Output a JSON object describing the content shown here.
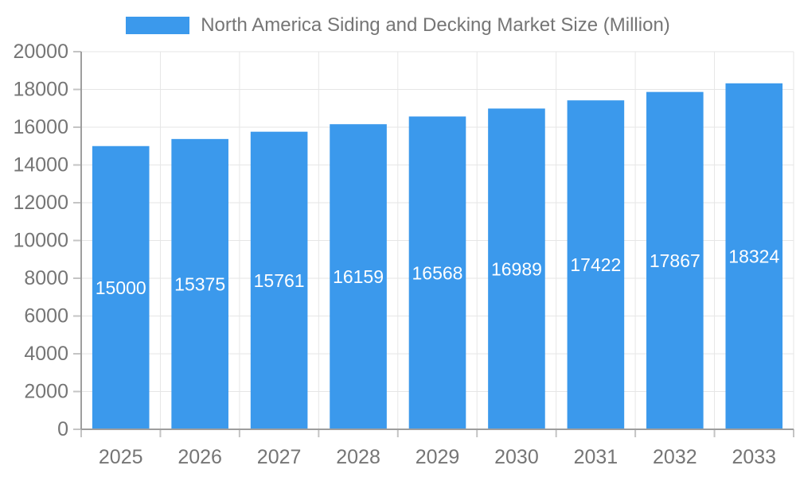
{
  "legend": {
    "label": "North America Siding and Decking Market Size (Million)",
    "swatch_color": "#3B99EC"
  },
  "chart_data": {
    "type": "bar",
    "title": "North America Siding and Decking Market Size (Million)",
    "categories": [
      "2025",
      "2026",
      "2027",
      "2028",
      "2029",
      "2030",
      "2031",
      "2032",
      "2033"
    ],
    "values": [
      15000,
      15375,
      15761,
      16159,
      16568,
      16989,
      17422,
      17867,
      18324
    ],
    "xlabel": "",
    "ylabel": "",
    "ylim": [
      0,
      20000
    ],
    "yticks": [
      0,
      2000,
      4000,
      6000,
      8000,
      10000,
      12000,
      14000,
      16000,
      18000,
      20000
    ],
    "grid": true,
    "legend_position": "top",
    "bar_color": "#3B99EC",
    "bar_label_color": "#FFFFFF",
    "axis_text_color": "#757575",
    "grid_color": "#E6E6E6",
    "axis_line_color": "#9E9E9E",
    "tick_color": "#C4C4C4",
    "background": "#FFFFFF"
  }
}
